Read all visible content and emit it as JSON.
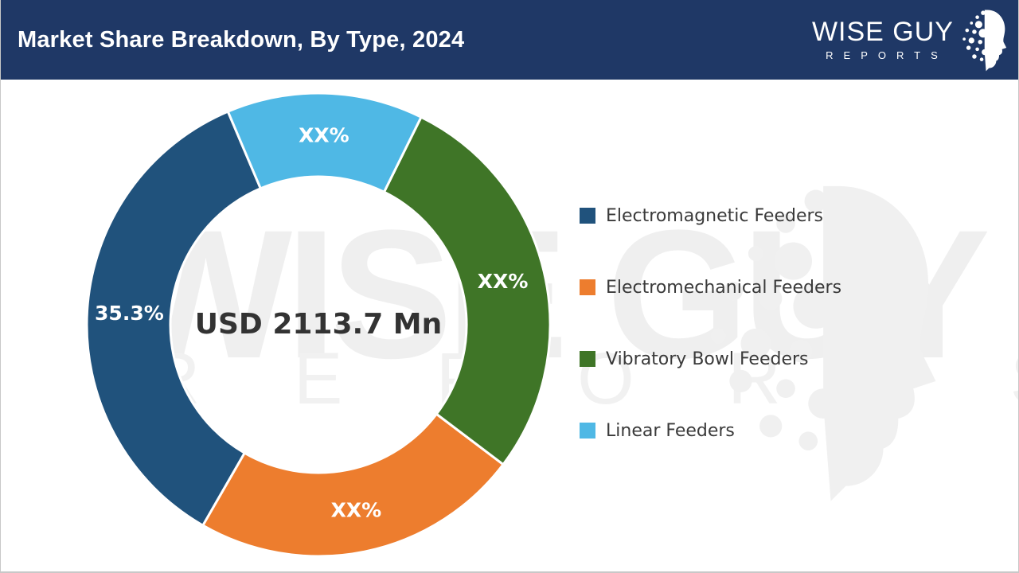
{
  "header": {
    "title": "Market Share Breakdown, By Type, 2024",
    "logo": {
      "name": "WISE GUY",
      "subtitle": "REPORTS"
    }
  },
  "chart_data": {
    "type": "pie",
    "subtype": "donut",
    "title": "Market Share Breakdown, By Type, 2024",
    "center_label": "USD 2113.7 Mn",
    "categories": [
      "Electromagnetic Feeders",
      "Electromechanical Feeders",
      "Vibratory Bowl Feeders",
      "Linear Feeders"
    ],
    "values": [
      35.3,
      23.0,
      28.0,
      13.7
    ],
    "slice_labels": [
      "35.3%",
      "XX%",
      "XX%",
      "XX%"
    ],
    "colors": [
      "#20527c",
      "#ed7d2e",
      "#3f7527",
      "#4fb8e5"
    ],
    "start_angle_deg": 113,
    "direction": "counterclockwise",
    "donut_hole_ratio": 0.64,
    "legend_position": "right"
  },
  "legend": {
    "items": [
      {
        "label": "Electromagnetic Feeders",
        "color": "#20527c"
      },
      {
        "label": "Electromechanical Feeders",
        "color": "#ed7d2e"
      },
      {
        "label": "Vibratory Bowl Feeders",
        "color": "#3f7527"
      },
      {
        "label": "Linear Feeders",
        "color": "#4fb8e5"
      }
    ]
  },
  "watermark": {
    "line1": "WISE GUY",
    "line2": "R E P O R T S"
  },
  "colors": {
    "header_bg": "#1f3866",
    "title_text": "#ffffff",
    "legend_text": "#3a3a3a",
    "center_text": "#333333",
    "slice_label_text": "#ffffff",
    "border": "#c8c8c8"
  }
}
